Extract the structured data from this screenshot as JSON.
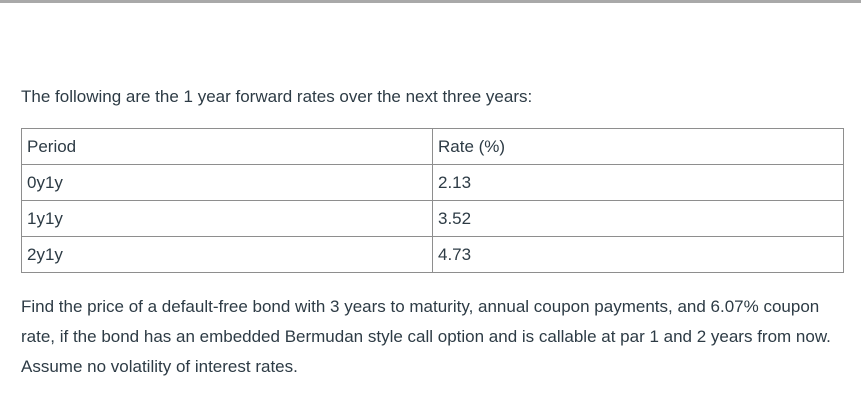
{
  "page": {
    "background": "#ffffff",
    "text_color": "#2d3b45",
    "top_bar_color": "#a9a9a9",
    "table_border_color": "#8e8e8e"
  },
  "intro": {
    "text": "The following are the 1 year forward rates over the next three years:"
  },
  "table": {
    "columns": [
      "Period",
      "Rate (%)"
    ],
    "rows": [
      {
        "period": "0y1y",
        "rate": "2.13"
      },
      {
        "period": "1y1y",
        "rate": "3.52"
      },
      {
        "period": "2y1y",
        "rate": "4.73"
      }
    ]
  },
  "question": {
    "text": "Find the price of a default-free bond with 3 years to maturity, annual coupon payments, and 6.07% coupon rate, if the bond has an embedded Bermudan style call option and is callable at par 1 and 2 years from now. Assume no volatility of interest rates."
  }
}
